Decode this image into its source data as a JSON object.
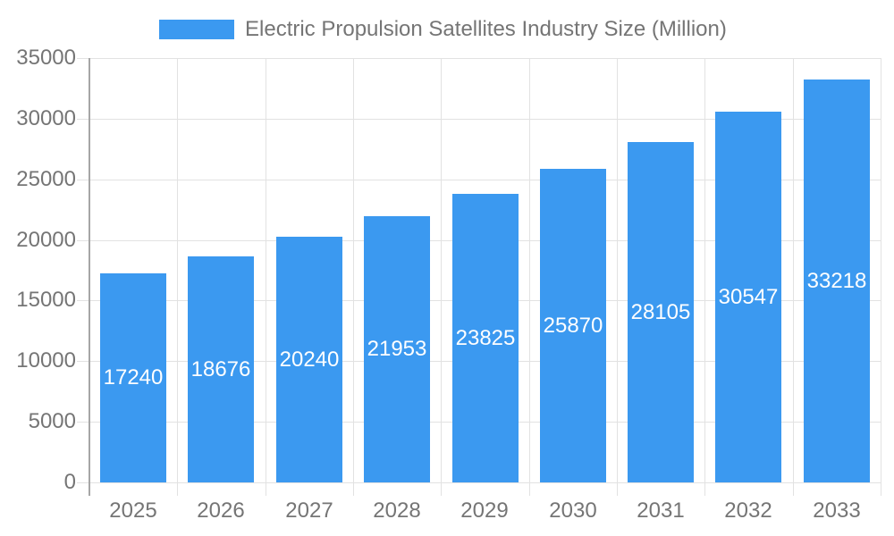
{
  "chart_data": {
    "type": "bar",
    "title": "Electric Propulsion Satellites Industry Size (Million)",
    "categories": [
      "2025",
      "2026",
      "2027",
      "2028",
      "2029",
      "2030",
      "2031",
      "2032",
      "2033"
    ],
    "series": [
      {
        "name": "Electric Propulsion Satellites Industry Size (Million)",
        "values": [
          17240,
          18676,
          20240,
          21953,
          23825,
          25870,
          28105,
          30547,
          33218
        ]
      }
    ],
    "value_labels": [
      17240,
      18676,
      20240,
      21953,
      23825,
      25870,
      28105,
      30547,
      33218
    ],
    "value_label_position": "inside-center",
    "xlabel": "",
    "ylabel": "",
    "ylim": [
      0,
      35000
    ],
    "yticks": [
      0,
      5000,
      10000,
      15000,
      20000,
      25000,
      30000,
      35000
    ],
    "ytick_labels": [
      "0",
      "5000",
      "10000",
      "15000",
      "20000",
      "25000",
      "30000",
      "35000"
    ],
    "grid": true,
    "legend_position": "top",
    "legend": [
      {
        "label": "Electric Propulsion Satellites Industry Size (Million)",
        "color": "#3B99F0"
      }
    ],
    "colors": {
      "bar": "#3B99F0",
      "axis_text": "#757575",
      "value_label_text": "#FFFFFF",
      "gridline": "#E2E2E2",
      "axis_line": "#A6A6A6",
      "background": "#FFFFFF"
    }
  }
}
